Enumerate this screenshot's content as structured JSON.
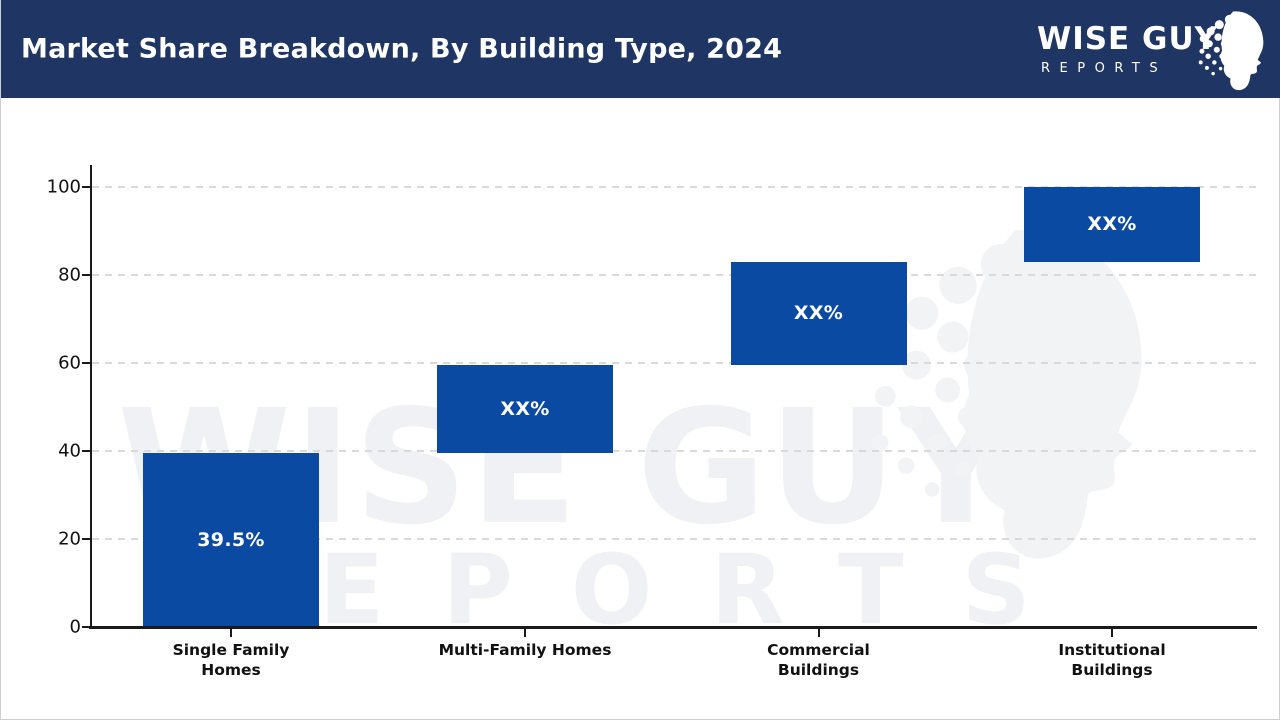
{
  "header": {
    "title": "Market Share Breakdown, By Building Type, 2024",
    "logo": {
      "name": "Wise Guy Reports",
      "line1": "WISE GUY",
      "line2": "REPORTS"
    }
  },
  "watermark": {
    "line1": "WISE GUY",
    "line2": "REPORTS"
  },
  "colors": {
    "header_bg": "#1f3563",
    "bar": "#0b4aa2",
    "axis": "#1a1a1a",
    "grid": "#d9d9d9",
    "bar_label": "#ffffff",
    "watermark": "#f0f1f4"
  },
  "chart_data": {
    "type": "bar",
    "subtype": "waterfall",
    "title": "Market Share Breakdown, By Building Type, 2024",
    "categories": [
      "Single Family Homes",
      "Multi-Family Homes",
      "Commercial Buildings",
      "Institutional Buildings"
    ],
    "category_lines": [
      [
        "Single Family",
        "Homes"
      ],
      [
        "Multi-Family Homes"
      ],
      [
        "Commercial",
        "Buildings"
      ],
      [
        "Institutional",
        "Buildings"
      ]
    ],
    "segments": [
      {
        "category": "Single Family Homes",
        "start": 0,
        "end": 39.5,
        "label": "39.5%"
      },
      {
        "category": "Multi-Family Homes",
        "start": 39.5,
        "end": 59.5,
        "label": "XX%"
      },
      {
        "category": "Commercial Buildings",
        "start": 59.5,
        "end": 83,
        "label": "XX%"
      },
      {
        "category": "Institutional Buildings",
        "start": 83,
        "end": 100,
        "label": "XX%"
      }
    ],
    "xlabel": "",
    "ylabel": "",
    "ylim": [
      0,
      100
    ],
    "yticks": [
      0,
      20,
      40,
      60,
      80,
      100
    ],
    "grid": "horizontal-dashed",
    "legend": "none"
  }
}
